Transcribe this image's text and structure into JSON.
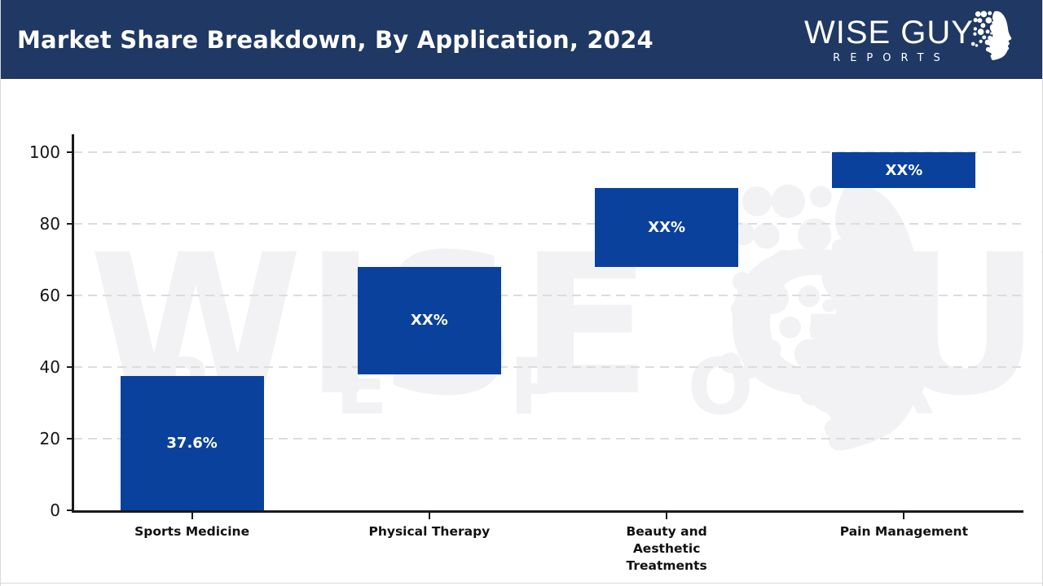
{
  "header": {
    "title": "Market Share Breakdown, By Application, 2024",
    "logo": {
      "brand": "WISE GUY",
      "sub": "REPORTS"
    }
  },
  "watermark": {
    "line1": "WISE GUY",
    "line2": "R E P O R T S"
  },
  "colors": {
    "header_bg": "#1f3864",
    "bar": "#0a419c",
    "bar_label": "#ffffff",
    "grid": "#dcdcdc",
    "axis": "#1a1a1a",
    "tick_label": "#151515",
    "watermark": "#f2f2f4"
  },
  "chart_data": {
    "type": "bar",
    "variant": "waterfall",
    "title": "Market Share Breakdown, By Application, 2024",
    "xlabel": "",
    "ylabel": "",
    "ylim": [
      0,
      105
    ],
    "yticks": [
      0,
      20,
      40,
      60,
      80,
      100
    ],
    "grid": "horizontal-dashed",
    "legend": "none",
    "categories": [
      "Sports Medicine",
      "Physical Therapy",
      "Beauty and Aesthetic Treatments",
      "Pain Management"
    ],
    "bars": [
      {
        "category": "Sports Medicine",
        "category_display": "Sports Medicine",
        "start": 0,
        "end": 37.6,
        "value": 37.6,
        "label": "37.6%"
      },
      {
        "category": "Physical Therapy",
        "category_display": "Physical Therapy",
        "start": 38,
        "end": 68,
        "value": 30,
        "label": "XX%"
      },
      {
        "category": "Beauty and Aesthetic Treatments",
        "category_display": "Beauty and\nAesthetic\nTreatments",
        "start": 68,
        "end": 90,
        "value": 22,
        "label": "XX%"
      },
      {
        "category": "Pain Management",
        "category_display": "Pain Management",
        "start": 90,
        "end": 100,
        "value": 10,
        "label": "XX%"
      }
    ]
  }
}
